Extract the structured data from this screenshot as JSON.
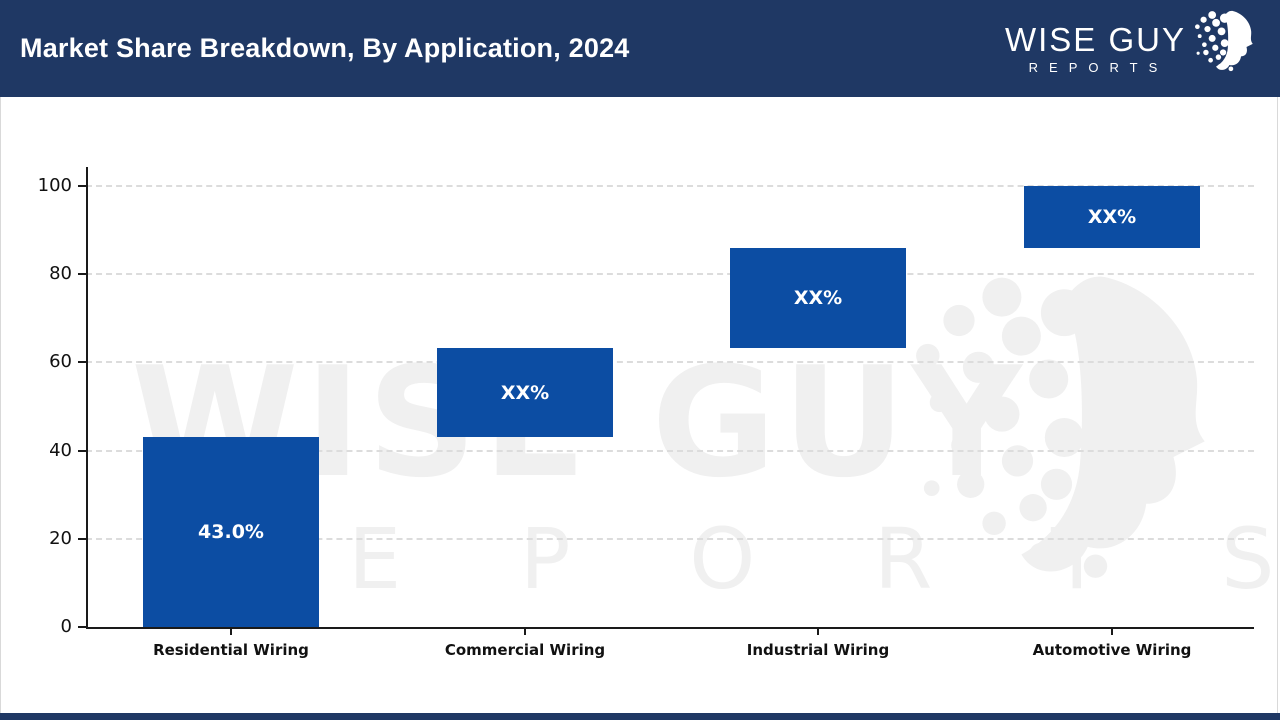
{
  "header": {
    "title": "Market Share Breakdown, By Application, 2024",
    "logo": {
      "line1": "WISE GUY",
      "line2": "REPORTS"
    }
  },
  "watermark": {
    "line1": "WISE GUY",
    "line2": "REPORTS"
  },
  "colors": {
    "header_bg": "#1f3864",
    "footer_bg": "#1f3864",
    "bar": "#0c4da3",
    "axis": "#1a1a1a",
    "grid": "#dcdcdc",
    "watermark": "#f0f0f0",
    "page_border": "#d9d9d9"
  },
  "chart_data": {
    "type": "bar",
    "subtype": "waterfall",
    "title": "Market Share Breakdown, By Application, 2024",
    "categories": [
      "Residential Wiring",
      "Commercial Wiring",
      "Industrial Wiring",
      "Automotive Wiring"
    ],
    "series": [
      {
        "name": "Market Share",
        "segments": [
          {
            "category": "Residential Wiring",
            "start": 0,
            "end": 43.0,
            "label": "43.0%"
          },
          {
            "category": "Commercial Wiring",
            "start": 43.0,
            "end": 63.3,
            "label": "XX%"
          },
          {
            "category": "Industrial Wiring",
            "start": 63.3,
            "end": 86.0,
            "label": "XX%"
          },
          {
            "category": "Automotive Wiring",
            "start": 86.0,
            "end": 100.0,
            "label": "XX%"
          }
        ]
      }
    ],
    "xlabel": "",
    "ylabel": "",
    "ylim": [
      0,
      100
    ],
    "yticks": [
      0,
      20,
      40,
      60,
      80,
      100
    ],
    "grid": "horizontal-dashed",
    "legend": "none",
    "bar_color": "#0c4da3"
  }
}
